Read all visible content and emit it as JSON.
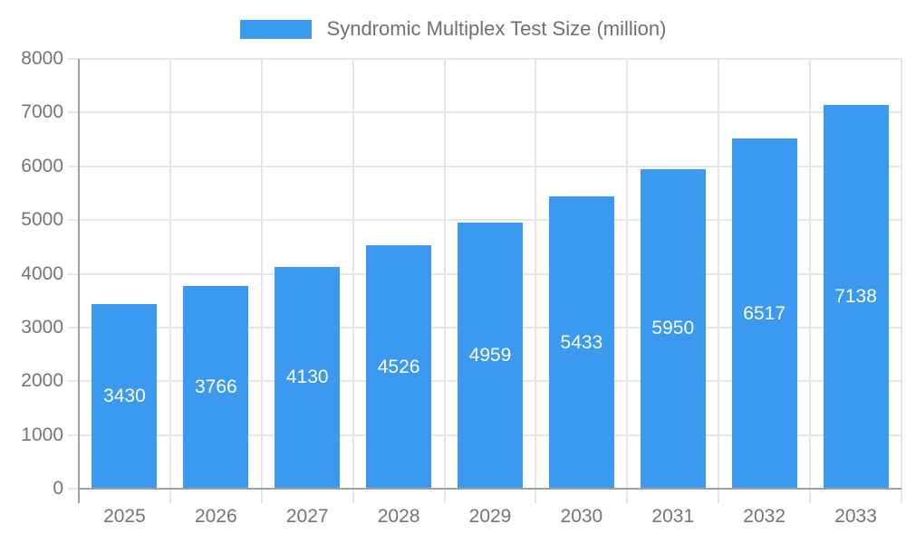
{
  "legend": {
    "label": "Syndromic Multiplex Test Size (million)"
  },
  "chart_data": {
    "type": "bar",
    "title": "Syndromic Multiplex Test Size (million)",
    "categories": [
      "2025",
      "2026",
      "2027",
      "2028",
      "2029",
      "2030",
      "2031",
      "2032",
      "2033"
    ],
    "values": [
      3430,
      3766,
      4130,
      4526,
      4959,
      5433,
      5950,
      6517,
      7138
    ],
    "xlabel": "",
    "ylabel": "",
    "ylim": [
      0,
      8000
    ],
    "ytick_step": 1000,
    "ytick_labels": [
      "0",
      "1000",
      "2000",
      "3000",
      "4000",
      "5000",
      "6000",
      "7000",
      "8000"
    ],
    "grid": true,
    "legend_position": "top-center",
    "value_labels": "inside-center",
    "colors": {
      "bar": "#3b99f0",
      "value_label": "#ffffff",
      "axis_line": "#a0a0a0",
      "gridline": "#e6e6e6",
      "tick_label": "#757575",
      "legend_text": "#707070",
      "background": "#ffffff"
    }
  }
}
